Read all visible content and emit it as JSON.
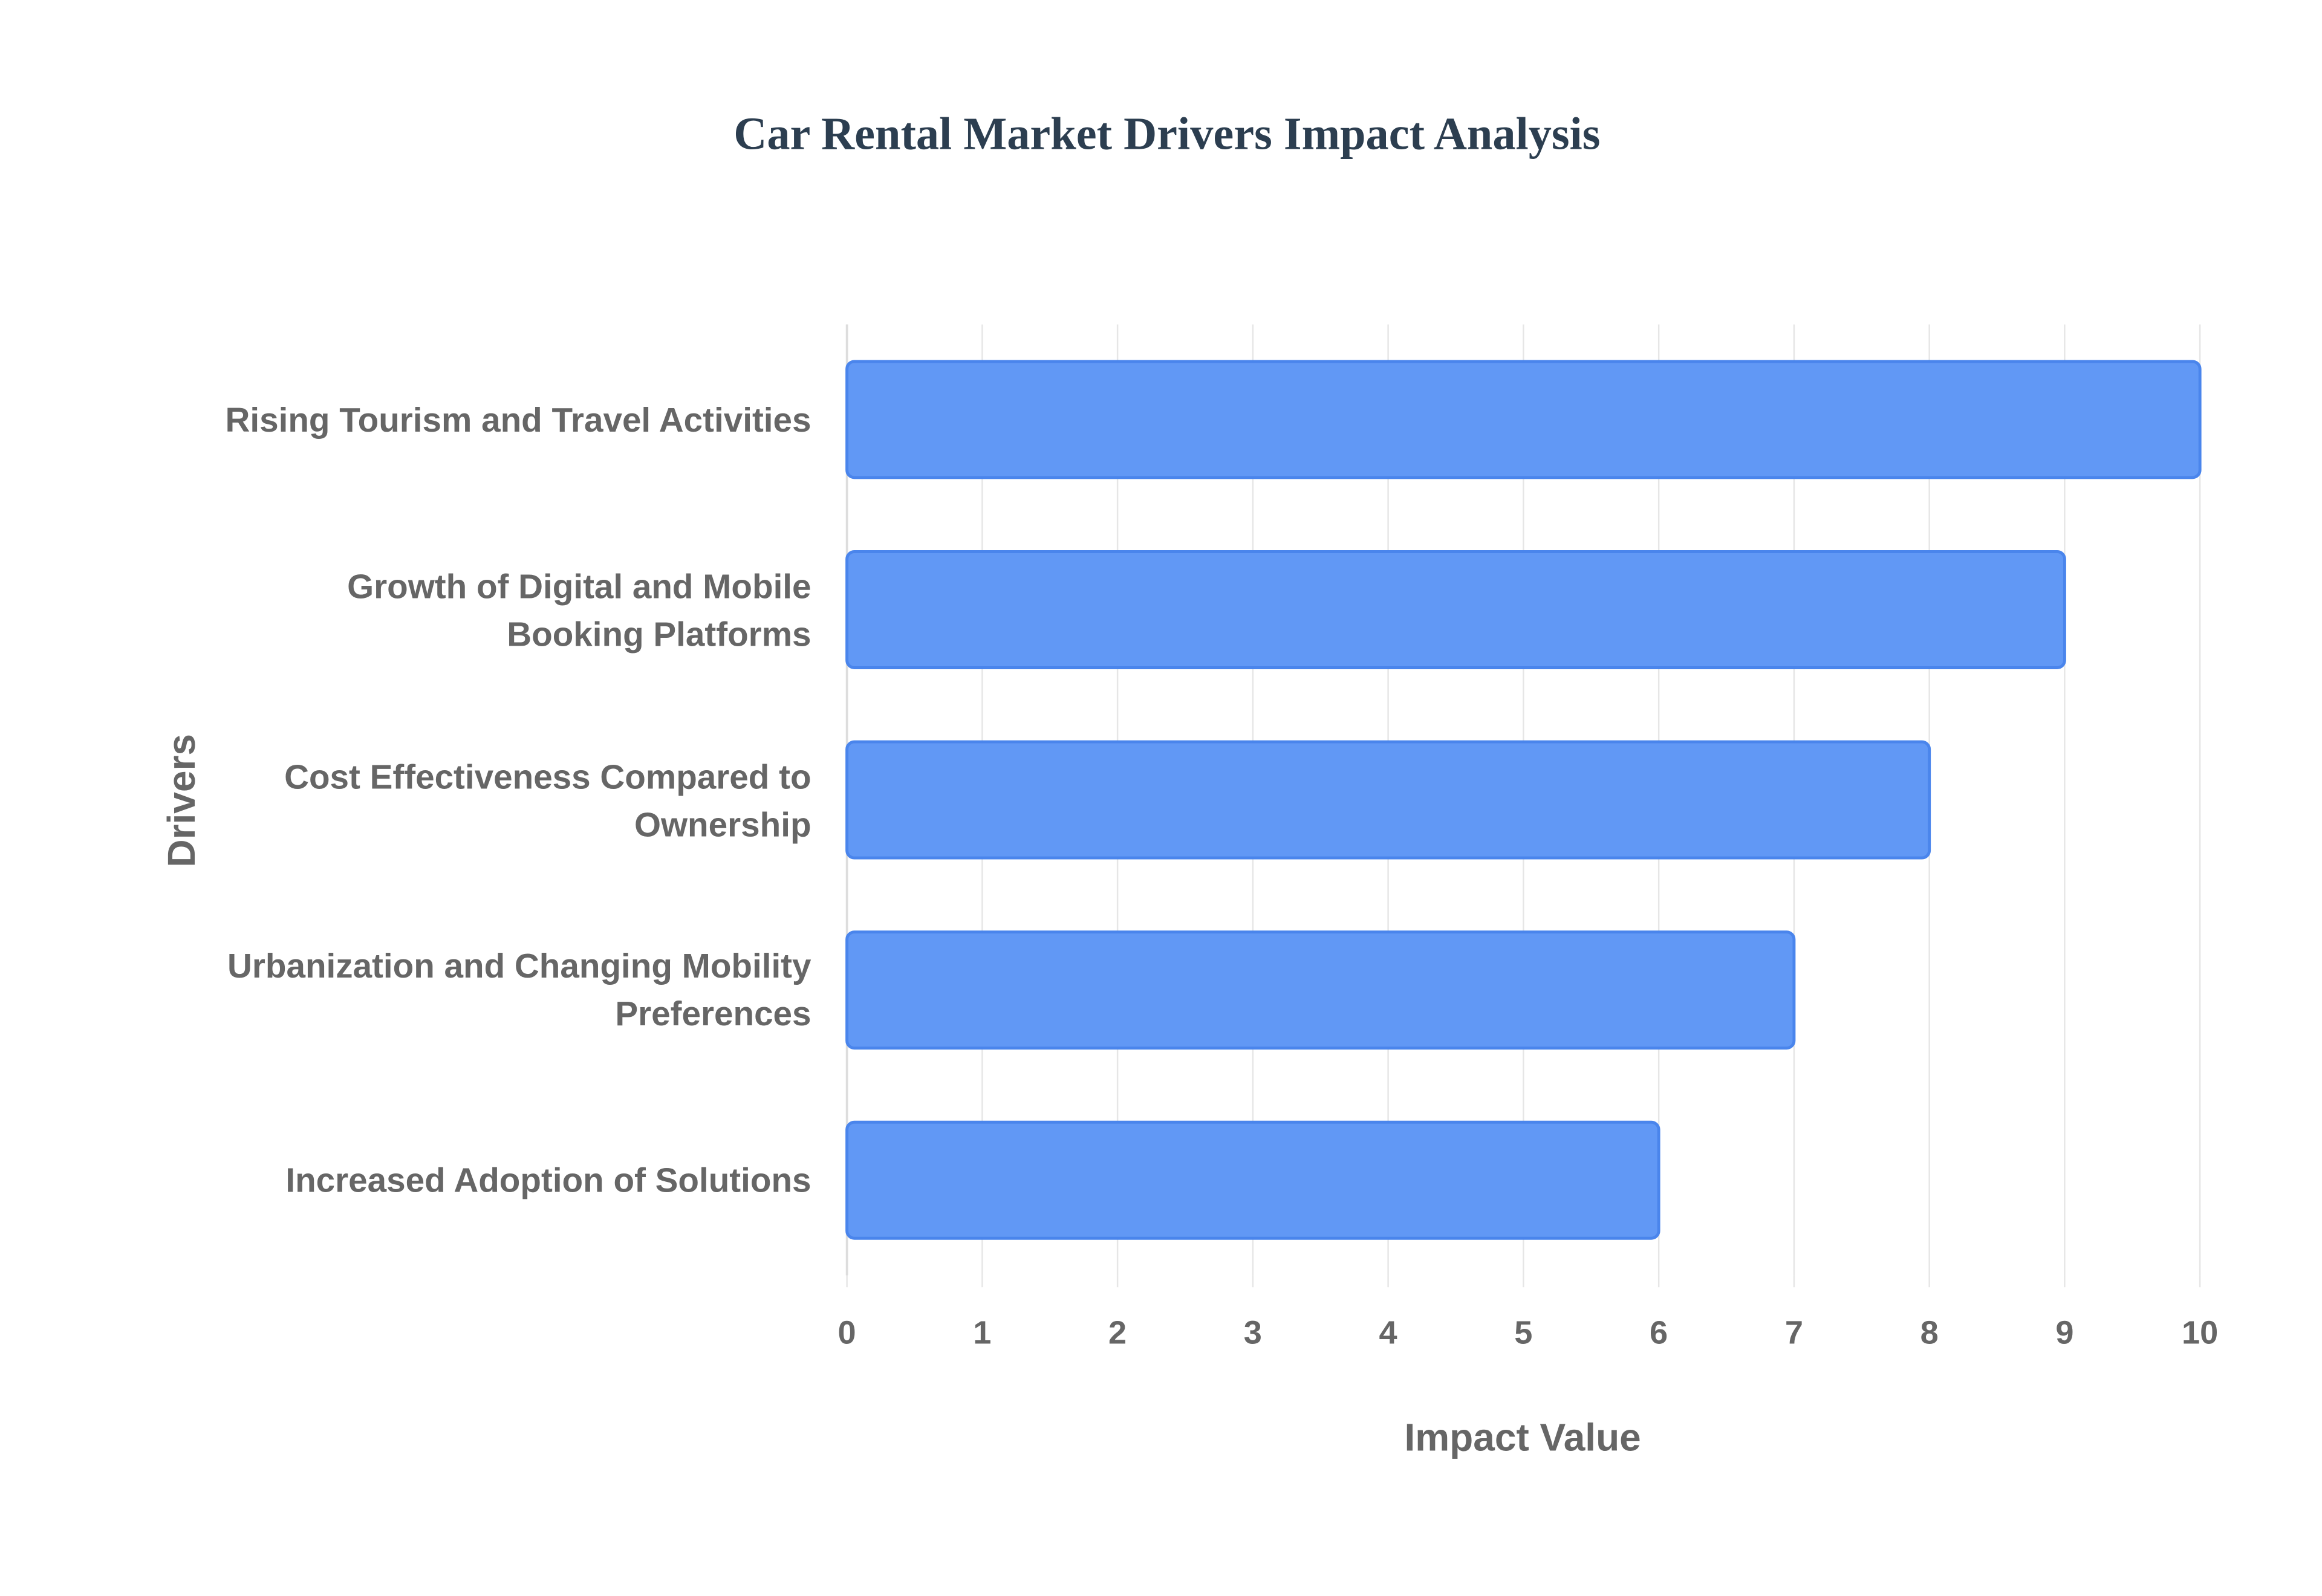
{
  "chart_data": {
    "type": "bar",
    "orientation": "horizontal",
    "title": "Car Rental Market Drivers Impact Analysis",
    "x_label": "Impact Value",
    "y_label": "Drivers",
    "categories": [
      "Rising Tourism and Travel Activities",
      "Growth of Digital and Mobile Booking Platforms",
      "Cost Effectiveness Compared to Ownership",
      "Urbanization and Changing Mobility Preferences",
      "Increased Adoption of Solutions"
    ],
    "values": [
      10,
      9,
      8,
      7,
      6
    ],
    "color": "#6198f5",
    "border_color": "#4a85ec",
    "xlim": [
      0,
      10
    ],
    "xticks": [
      0,
      1,
      2,
      3,
      4,
      5,
      6,
      7,
      8,
      9,
      10
    ],
    "grid": true
  }
}
